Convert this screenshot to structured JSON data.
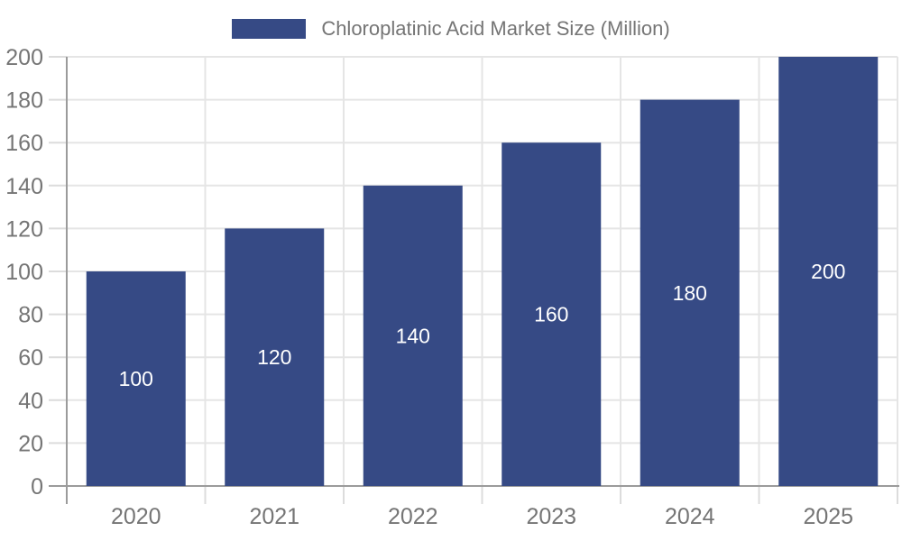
{
  "legend": {
    "position": "top-center",
    "label": "Chloroplatinic Acid Market Size (Million)"
  },
  "chart_data": {
    "type": "bar",
    "title": "Chloroplatinic Acid Market Size (Million)",
    "categories": [
      "2020",
      "2021",
      "2022",
      "2023",
      "2024",
      "2025"
    ],
    "series": [
      {
        "name": "Chloroplatinic Acid Market Size (Million)",
        "values": [
          100,
          120,
          140,
          160,
          180,
          200
        ]
      }
    ],
    "bar_labels": [
      "100",
      "120",
      "140",
      "160",
      "180",
      "200"
    ],
    "xlabel": "",
    "ylabel": "",
    "ylim": [
      0,
      200
    ],
    "yticks": [
      0,
      20,
      40,
      60,
      80,
      100,
      120,
      140,
      160,
      180,
      200
    ],
    "grid": true,
    "legend_position": "top-center",
    "colors": {
      "bar": "#364a85",
      "axis_line": "#9b9b9b",
      "gridline": "#e5e5e5",
      "tick": "#dcdcdc",
      "axis_text": "#757575",
      "bar_label_text": "#ffffff",
      "background": "#ffffff"
    }
  }
}
